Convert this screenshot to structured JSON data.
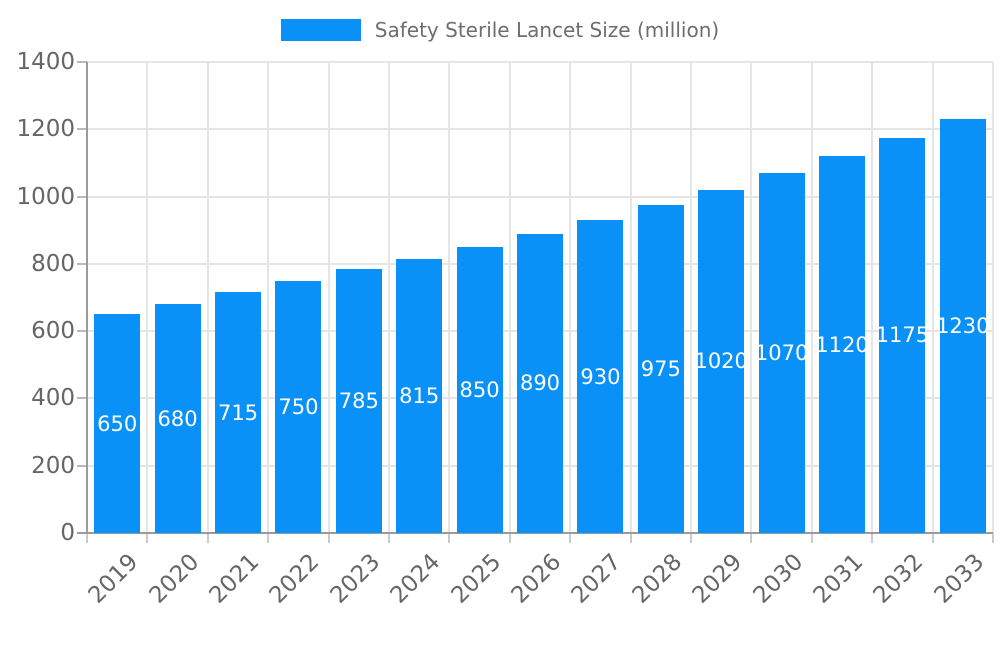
{
  "legend": {
    "label": "Safety Sterile Lancet Size (million)"
  },
  "colors": {
    "bar": "#0991F8",
    "grid": "#E5E5E5",
    "axis": "#9B9B9B",
    "axis_text": "#666666",
    "legend_text": "#6E6E6E",
    "bar_label_text": "#FFFFFF",
    "background": "#FFFFFF"
  },
  "chart_data": {
    "type": "bar",
    "title": "Safety Sterile Lancet Size (million)",
    "categories": [
      "2019",
      "2020",
      "2021",
      "2022",
      "2023",
      "2024",
      "2025",
      "2026",
      "2027",
      "2028",
      "2029",
      "2030",
      "2031",
      "2032",
      "2033"
    ],
    "values": [
      650,
      680,
      715,
      750,
      785,
      815,
      850,
      890,
      930,
      975,
      1020,
      1070,
      1120,
      1175,
      1230
    ],
    "xlabel": "",
    "ylabel": "",
    "ylim": [
      0,
      1400
    ],
    "yticks": [
      0,
      200,
      400,
      600,
      800,
      1000,
      1200,
      1400
    ],
    "grid": true,
    "legend_position": "top",
    "bar_value_labels": true
  }
}
